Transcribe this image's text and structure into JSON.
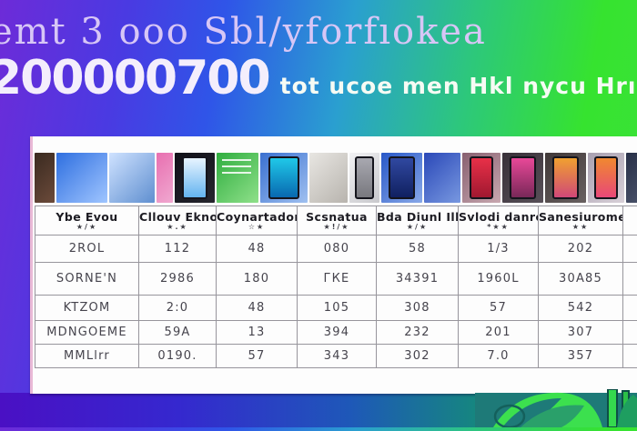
{
  "header": {
    "line1": "emt 3 ooo Sbl/yforfıokea",
    "big_number": "200000700",
    "line2": "tot ucoe men Hkl nycu Hrın bcucv"
  },
  "chart_data": {
    "type": "table",
    "title": "",
    "columns": [
      {
        "label": "Ybe Evou",
        "stars": "★/★",
        "values": [
          "2ROL",
          "SORNE'N",
          "KTZOM",
          "MDNGOEME",
          "MMLlrr"
        ]
      },
      {
        "label": "Cllouv Eknoro",
        "stars": "★.★",
        "values": [
          "112",
          "2986",
          "2:0",
          "59A",
          "0190."
        ]
      },
      {
        "label": "Coynartadons",
        "stars": "☆★",
        "values": [
          "48",
          "180",
          "48",
          "13",
          "57"
        ]
      },
      {
        "label": "Scsnatua",
        "stars": "★!/★",
        "values": [
          "080",
          "ГКЕ",
          "105",
          "394",
          "343"
        ]
      },
      {
        "label": "Bda Diunl Illiun",
        "stars": "★/★",
        "values": [
          "58",
          "34391",
          "308",
          "232",
          "302"
        ]
      },
      {
        "label": "Svlodi danro",
        "stars": "*★★",
        "values": [
          "1/3",
          "1960L",
          "57",
          "201",
          "7.0"
        ]
      },
      {
        "label": "Sanesiurome",
        "stars": "★★",
        "values": [
          "202",
          "30A85",
          "542",
          "307",
          "357"
        ]
      },
      {
        "label": "",
        "stars": "",
        "values": [
          "",
          "",
          "",
          "",
          ""
        ]
      }
    ]
  },
  "thumbnails": [
    {
      "name": "dark-mosaic-thumbnail",
      "from": "#3a2a20",
      "to": "#6b4a3a",
      "type": "grid"
    },
    {
      "name": "blue-chart-grid-thumbnail",
      "from": "#2f6fe0",
      "to": "#9fc5ff",
      "type": "grid"
    },
    {
      "name": "light-grid-thumbnail",
      "from": "#cfe2ff",
      "to": "#5f8fd0",
      "type": "grid"
    },
    {
      "name": "pink-strip-thumbnail",
      "from": "#e86fb0",
      "to": "#f0a8d0",
      "type": "grid"
    },
    {
      "name": "black-phone-thumbnail",
      "from": "#101018",
      "to": "#26262e",
      "type": "phone",
      "screen_from": "#e8f4ff",
      "screen_to": "#63b4f0"
    },
    {
      "name": "green-card-thumbnail",
      "from": "#2fae3f",
      "to": "#8fe08a",
      "type": "card"
    },
    {
      "name": "circuit-phone-thumbnail",
      "from": "#3a70d0",
      "to": "#9fc0f0",
      "type": "phone",
      "screen_from": "#20c8e8",
      "screen_to": "#0868b0"
    },
    {
      "name": "gray-scene-thumbnail",
      "from": "#e8e6e2",
      "to": "#b8b4ae",
      "type": "grid"
    },
    {
      "name": "white-phone-thumbnail",
      "from": "#f2f2f4",
      "to": "#c8c8cc",
      "type": "phone",
      "screen_from": "#a8a8b0",
      "screen_to": "#78787e"
    },
    {
      "name": "blue-wall-phone-thumbnail",
      "from": "#2858c8",
      "to": "#88a8e8",
      "type": "phone",
      "screen_from": "#3048a0",
      "screen_to": "#102060"
    },
    {
      "name": "blue-rays-thumbnail",
      "from": "#2a48b8",
      "to": "#7898e0",
      "type": "grid"
    },
    {
      "name": "red-tiles-phone-thumbnail",
      "from": "#886070",
      "to": "#c8a8b0",
      "type": "phone",
      "screen_from": "#e83048",
      "screen_to": "#a01830"
    },
    {
      "name": "pink-circle-phone-thumbnail",
      "from": "#383038",
      "to": "#585058",
      "type": "phone",
      "screen_from": "#e84898",
      "screen_to": "#782858"
    },
    {
      "name": "orange-circle-phone-thumbnail",
      "from": "#403838",
      "to": "#686060",
      "type": "phone",
      "screen_from": "#f0a030",
      "screen_to": "#d04878"
    },
    {
      "name": "arrows-phone-thumbnail",
      "from": "#a8a0b0",
      "to": "#d8d0d8",
      "type": "phone",
      "screen_from": "#f08830",
      "screen_to": "#e84878"
    },
    {
      "name": "narrow-dark-thumbnail",
      "from": "#283048",
      "to": "#485068",
      "type": "grid"
    },
    {
      "name": "red-phone-thumbnail",
      "from": "#181820",
      "to": "#303038",
      "type": "phone",
      "screen_from": "#f05878",
      "screen_to": "#c01838"
    }
  ],
  "colors": {
    "bg_purple": "#6d2bd8",
    "bg_blue": "#2f55e8",
    "bg_green": "#36e32f",
    "band_violet": "#4a10c4",
    "leaf_teal": "#1e7a78",
    "leaf_green": "#3ce04e",
    "panel_white": "#fdfdfd",
    "grid_line": "#97959c",
    "title_lavender": "#d7c6f6"
  }
}
